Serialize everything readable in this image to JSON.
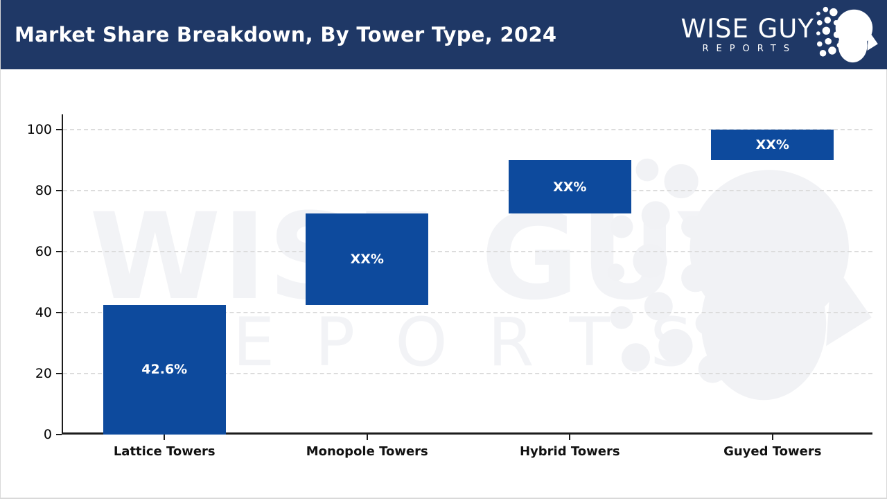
{
  "header": {
    "title": "Market Share Breakdown, By Tower Type, 2024",
    "bg_color": "#1F3866",
    "logo": {
      "line1": "WISE GUY",
      "line2": "REPORTS",
      "icon": "dotted-face-profile-icon"
    }
  },
  "watermark": {
    "line1": "WISE GUY",
    "line2": "REPORTS",
    "icon": "dotted-face-profile-watermark"
  },
  "chart_data": {
    "type": "bar",
    "subtype": "waterfall",
    "title": "Market Share Breakdown, By Tower Type, 2024",
    "xlabel": "",
    "ylabel": "",
    "categories": [
      "Lattice Towers",
      "Monopole Towers",
      "Hybrid Towers",
      "Guyed Towers"
    ],
    "segments": [
      {
        "category": "Lattice Towers",
        "start": 0,
        "end": 42.6,
        "label": "42.6%"
      },
      {
        "category": "Monopole Towers",
        "start": 42.6,
        "end": 72.5,
        "label": "XX%"
      },
      {
        "category": "Hybrid Towers",
        "start": 72.5,
        "end": 90,
        "label": "XX%"
      },
      {
        "category": "Guyed Towers",
        "start": 90,
        "end": 100,
        "label": "XX%"
      }
    ],
    "ylim": [
      0,
      105
    ],
    "yticks": [
      0,
      20,
      40,
      60,
      80,
      100
    ],
    "grid": true,
    "legend": "none",
    "bar_color": "#0D4A9D",
    "grid_color": "#DCDCDC",
    "axis_color": "#1C1C1C",
    "value_label_color": "#FFFFFF"
  }
}
